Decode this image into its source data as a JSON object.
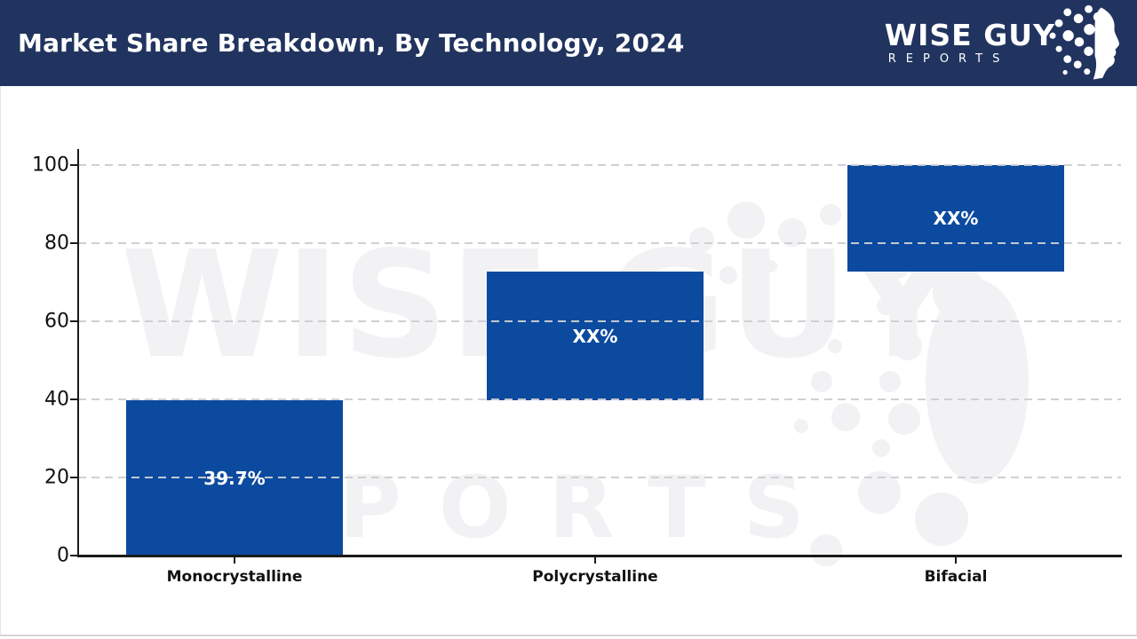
{
  "header": {
    "title": "Market Share Breakdown, By Technology, 2024",
    "logo": {
      "line1": "WISE GUY",
      "line2": "REPORTS"
    },
    "bg_color": "#21345f"
  },
  "watermark": {
    "line1": "WISE GUY",
    "line2": "REPORTS"
  },
  "chart_data": {
    "type": "bar",
    "subtype": "waterfall-stacked",
    "title": "Market Share Breakdown, By Technology, 2024",
    "categories": [
      "Monocrystalline",
      "Polycrystalline",
      "Bifacial"
    ],
    "segments": [
      {
        "category": "Monocrystalline",
        "start": 0,
        "end": 39.7,
        "label": "39.7%"
      },
      {
        "category": "Polycrystalline",
        "start": 39.7,
        "end": 72.7,
        "label": "XX%"
      },
      {
        "category": "Bifacial",
        "start": 72.7,
        "end": 100,
        "label": "XX%"
      }
    ],
    "yticks": [
      0,
      20,
      40,
      60,
      80,
      100
    ],
    "ylim": [
      0,
      100
    ],
    "xlabel": "",
    "ylabel": "",
    "bar_color": "#0b4a9f",
    "grid": true,
    "grid_style": "dashed",
    "legend": "none"
  }
}
